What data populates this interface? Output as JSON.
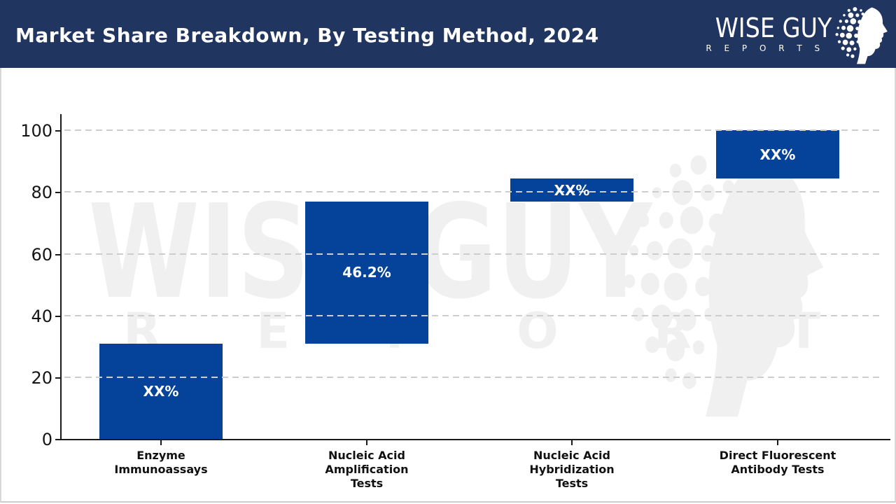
{
  "header": {
    "title": "Market Share Breakdown, By Testing Method, 2024",
    "background_color": "#213561",
    "brand": {
      "line1": "WISE GUY",
      "line2": "R E P O R T S",
      "face_icon": "dotted-head-profile"
    }
  },
  "watermark": {
    "line1": "WISE GUY",
    "line2": "R E P O R T S",
    "face_icon": "dotted-head-profile"
  },
  "chart_data": {
    "type": "bar",
    "subtype": "waterfall",
    "title": "Market Share Breakdown, By Testing Method, 2024",
    "categories": [
      "Enzyme\nImmunoassays",
      "Nucleic Acid\nAmplification\nTests",
      "Nucleic Acid\nHybridization\nTests",
      "Direct Fluorescent\nAntibody Tests"
    ],
    "segments": [
      {
        "label": "XX%",
        "start": 0,
        "value": 30.8
      },
      {
        "label": "46.2%",
        "start": 30.8,
        "value": 46.2
      },
      {
        "label": "XX%",
        "start": 76.9,
        "value": 7.5
      },
      {
        "label": "XX%",
        "start": 84.4,
        "value": 15.6
      }
    ],
    "bar_color": "#054299",
    "bar_label_color": "#ffffff",
    "yticks": [
      0,
      20,
      40,
      60,
      80,
      100
    ],
    "ylim": [
      0,
      105
    ],
    "xlabel": "",
    "ylabel": "",
    "grid": "horizontal dashed, drawn above bars",
    "legend": "none"
  }
}
